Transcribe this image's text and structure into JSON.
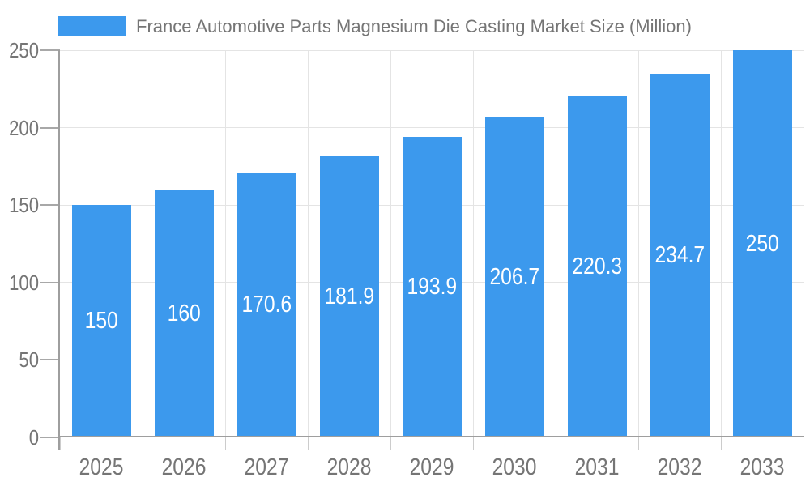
{
  "chart_data": {
    "type": "bar",
    "title": "France Automotive Parts Magnesium Die Casting Market Size (Million)",
    "legend_position": "top",
    "categories": [
      "2025",
      "2026",
      "2027",
      "2028",
      "2029",
      "2030",
      "2031",
      "2032",
      "2033"
    ],
    "series": [
      {
        "name": "France Automotive Parts Magnesium Die Casting Market Size (Million)",
        "values": [
          150,
          160,
          170.6,
          181.9,
          193.9,
          206.7,
          220.3,
          234.7,
          250
        ]
      }
    ],
    "value_labels": [
      "150",
      "160",
      "170.6",
      "181.9",
      "193.9",
      "206.7",
      "220.3",
      "234.7",
      "250"
    ],
    "xlabel": "",
    "ylabel": "",
    "ylim": [
      0,
      250
    ],
    "yticks": [
      0,
      50,
      100,
      150,
      200,
      250
    ],
    "grid": true,
    "colors": {
      "bar": "#3C99ED",
      "grid_line": "#e4e4e4",
      "axis_line": "#9e9e9e",
      "axis_tick": "#a8a8a8",
      "minor_tick": "#cccccc",
      "label_text": "#757575",
      "value_text": "#ffffff",
      "background": "#ffffff"
    }
  }
}
